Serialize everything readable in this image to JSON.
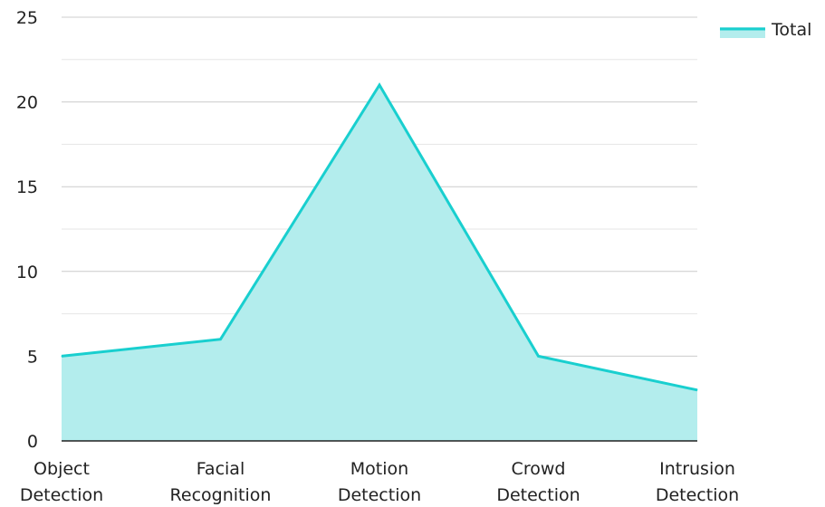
{
  "chart_data": {
    "type": "area",
    "categories": [
      [
        "Object",
        "Detection"
      ],
      [
        "Facial",
        "Recognition"
      ],
      [
        "Motion",
        "Detection"
      ],
      [
        "Crowd",
        "Detection"
      ],
      [
        "Intrusion",
        "Detection"
      ]
    ],
    "series": [
      {
        "name": "Total",
        "values": [
          5,
          6,
          21,
          5,
          3
        ]
      }
    ],
    "ylim": [
      0,
      25
    ],
    "yticks": [
      0,
      5,
      10,
      15,
      20,
      25
    ],
    "grid": true,
    "legend_position": "top-right",
    "colors": {
      "line": "#19cfcf",
      "fill": "#b3eded",
      "grid": "#cccccc",
      "minor_grid": "#e6e6e6",
      "axis": "#222222"
    }
  }
}
